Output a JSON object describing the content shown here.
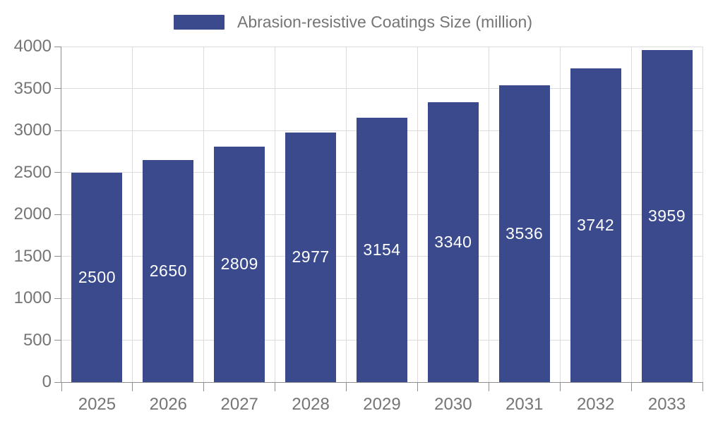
{
  "legend": {
    "label": "Abrasion-resistive Coatings Size (million)"
  },
  "chart_data": {
    "type": "bar",
    "title": "",
    "legend_entries": [
      "Abrasion-resistive Coatings Size (million)"
    ],
    "legend_position": "top-center",
    "categories": [
      "2025",
      "2026",
      "2027",
      "2028",
      "2029",
      "2030",
      "2031",
      "2032",
      "2033"
    ],
    "values": [
      2500,
      2650,
      2809,
      2977,
      3154,
      3340,
      3536,
      3742,
      3959
    ],
    "value_labels": [
      "2500",
      "2650",
      "2809",
      "2977",
      "3154",
      "3340",
      "3536",
      "3742",
      "3959"
    ],
    "xlabel": "",
    "ylabel": "",
    "ylim": [
      0,
      4000
    ],
    "ytick_step": 500,
    "ytick_labels": [
      "0",
      "500",
      "1000",
      "1500",
      "2000",
      "2500",
      "3000",
      "3500",
      "4000"
    ],
    "grid": true,
    "colors": {
      "bar": "#3a4a8c",
      "axis_line": "#8e8e8e",
      "gridline": "#dcdcdc",
      "tick_label": "#757575",
      "value_label": "#ffffff",
      "legend_text": "#757575"
    }
  }
}
